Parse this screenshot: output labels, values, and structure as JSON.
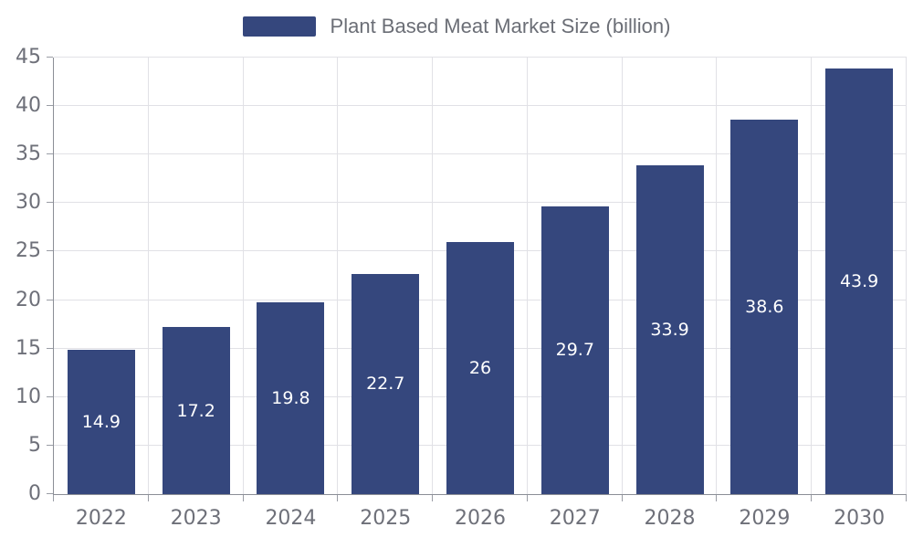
{
  "chart": {
    "colors": {
      "bar": "#35477d",
      "grid": "#e1e1e6",
      "axis_line": "#8b8e96",
      "tick": "#9a9da5",
      "axis_text": "#6E7079",
      "value_label": "#ffffff",
      "legend_text": "#6b6e76",
      "background": "#ffffff"
    }
  },
  "chart_data": {
    "type": "bar",
    "title": "Plant Based Meat Market Size (billion)",
    "series_name": "Plant Based Meat Market Size (billion)",
    "categories": [
      "2022",
      "2023",
      "2024",
      "2025",
      "2026",
      "2027",
      "2028",
      "2029",
      "2030"
    ],
    "values": [
      14.9,
      17.2,
      19.8,
      22.7,
      26,
      29.7,
      33.9,
      38.6,
      43.9
    ],
    "xlabel": "",
    "ylabel": "",
    "ylim": [
      0,
      45
    ],
    "y_ticks": [
      0,
      5,
      10,
      15,
      20,
      25,
      30,
      35,
      40,
      45
    ],
    "grid": true,
    "legend_position": "top",
    "value_labels": "inside-center"
  }
}
